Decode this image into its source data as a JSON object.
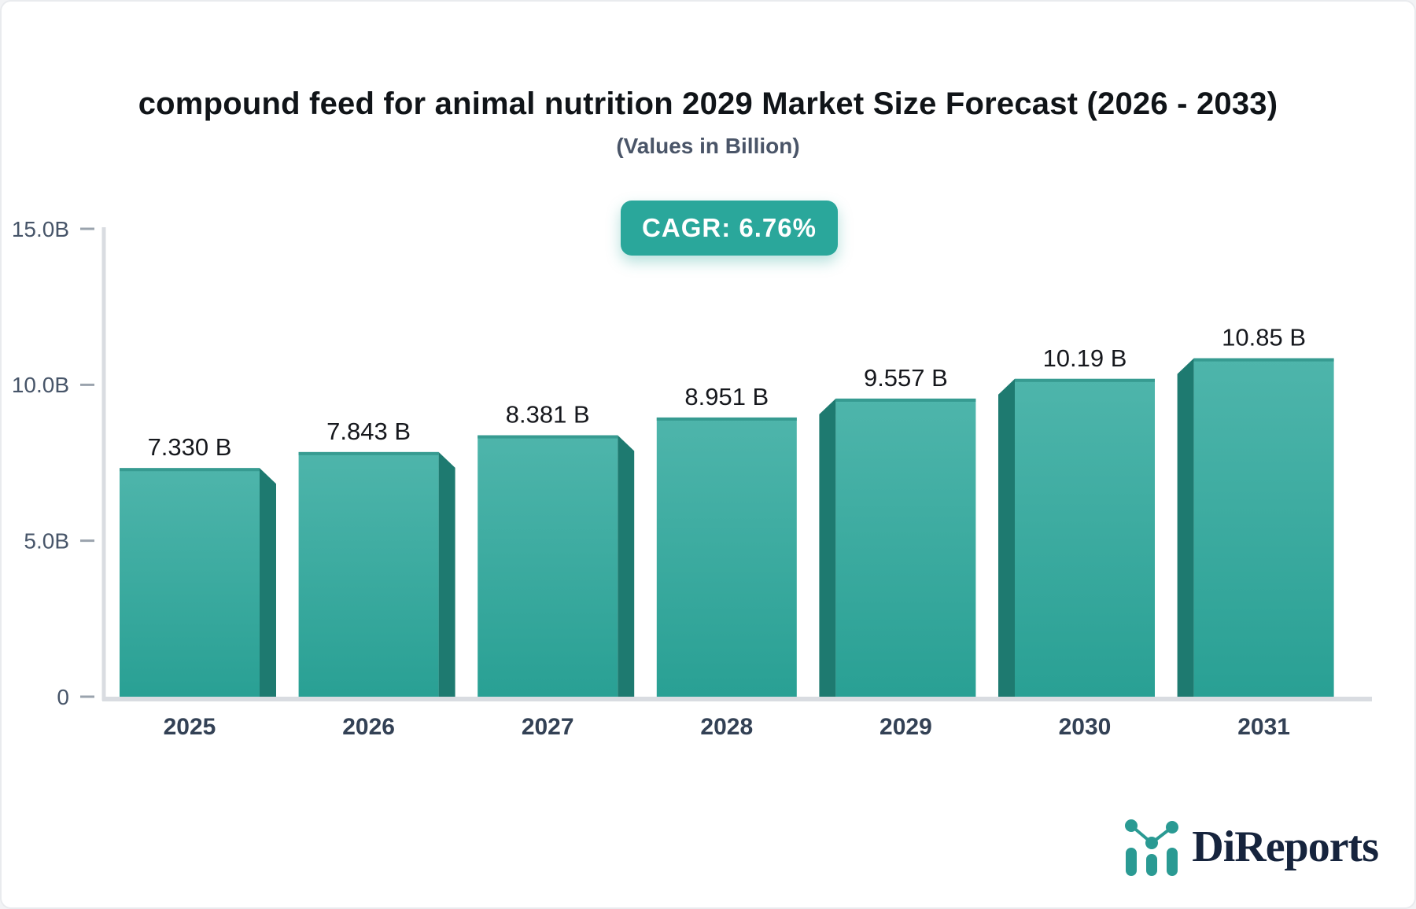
{
  "header": {
    "title": "compound feed for animal nutrition 2029 Market Size Forecast (2026 - 2033)",
    "subtitle": "(Values in Billion)"
  },
  "badge": {
    "label": "CAGR: 6.76%"
  },
  "brand": {
    "name": "DiReports",
    "icon": "bar-line-chart-icon"
  },
  "colors": {
    "accent": "#2aa79b",
    "bar_top": "#4eb5ab",
    "bar_bottom": "#29a094",
    "bar_side": "#1e7a70",
    "bar_edge": "#379b91",
    "axis_line": "#d9dce1",
    "tick_dash": "#9aa3ad",
    "tick_label": "#475569",
    "year_label": "#334155",
    "value_label": "#16181d",
    "title": "#101418",
    "subtitle": "#4a5568",
    "brand_navy": "#16243d",
    "brand_teal": "#2a9a93"
  },
  "chart_data": {
    "type": "bar",
    "title": "compound feed for animal nutrition 2029 Market Size Forecast (2026 - 2033)",
    "subtitle": "(Values in Billion)",
    "categories": [
      "2025",
      "2026",
      "2027",
      "2028",
      "2029",
      "2030",
      "2031"
    ],
    "values": [
      7.33,
      7.843,
      8.381,
      8.951,
      9.557,
      10.19,
      10.85
    ],
    "value_labels": [
      "7.330 B",
      "7.843 B",
      "8.381 B",
      "8.951 B",
      "9.557 B",
      "10.19 B",
      "10.85 B"
    ],
    "unit": "Billion",
    "ylim": [
      0,
      15
    ],
    "y_ticks": [
      {
        "value": 15,
        "label": "15.0B"
      },
      {
        "value": 10,
        "label": "10.0B"
      },
      {
        "value": 5,
        "label": "5.0B"
      },
      {
        "value": 0,
        "label": "0"
      }
    ],
    "grid": false,
    "legend": "none",
    "cagr": "6.76%",
    "style": "3d-perspective-teal-bars"
  }
}
